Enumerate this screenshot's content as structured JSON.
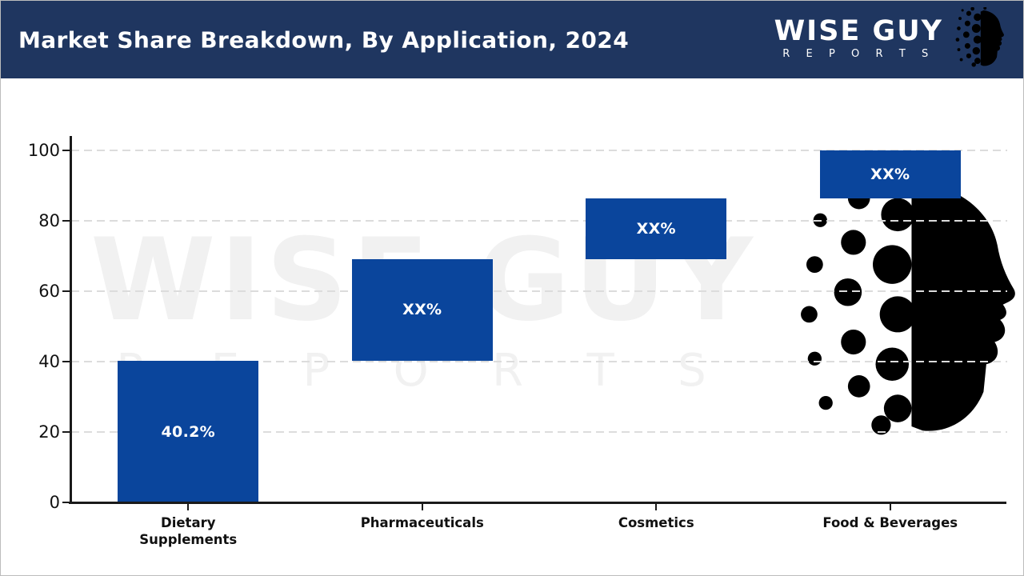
{
  "page": {
    "background": "#ffffff",
    "border_color": "#bcbcbc"
  },
  "header": {
    "title": "Market Share Breakdown, By Application, 2024",
    "background": "#1f3660",
    "text_color": "#ffffff"
  },
  "logo": {
    "line1": "WISE GUY",
    "line2": "R E P O R T S",
    "head_icon": "dotted-face-profile"
  },
  "watermark": {
    "line1": "WISE GUY",
    "line2": "R E P O R T S"
  },
  "chart_data": {
    "type": "bar",
    "variant": "waterfall",
    "title": "Market Share Breakdown, By Application, 2024",
    "categories": [
      "Dietary Supplements",
      "Pharmaceuticals",
      "Cosmetics",
      "Food & Beverages"
    ],
    "x_tick_labels": [
      "Dietary\nSupplements",
      "Pharmaceuticals",
      "Cosmetics",
      "Food & Beverages"
    ],
    "bars": [
      {
        "category": "Dietary Supplements",
        "start": 0,
        "end": 40.2,
        "label": "40.2%"
      },
      {
        "category": "Pharmaceuticals",
        "start": 40.2,
        "end": 69.2,
        "label": "XX%"
      },
      {
        "category": "Cosmetics",
        "start": 69.2,
        "end": 86.4,
        "label": "XX%"
      },
      {
        "category": "Food & Beverages",
        "start": 86.4,
        "end": 100,
        "label": "XX%"
      }
    ],
    "ylim": [
      0,
      100
    ],
    "yticks": [
      0,
      20,
      40,
      60,
      80,
      100
    ],
    "xlabel": "",
    "ylabel": "",
    "bar_color": "#0a459c",
    "bar_label_color": "#ffffff",
    "grid": true,
    "gridline_style": "dashed",
    "gridline_color": "#dcdcdc",
    "legend": false
  }
}
